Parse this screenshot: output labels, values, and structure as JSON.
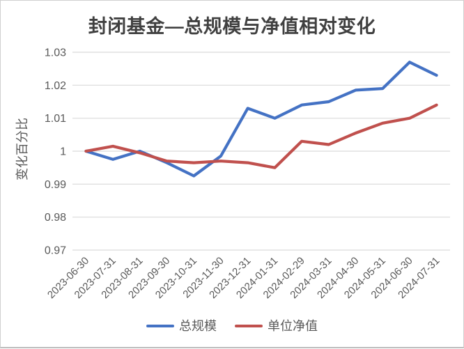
{
  "title": "封闭基金—总规模与净值相对变化",
  "chart_data": {
    "type": "line",
    "title": "封闭基金—总规模与净值相对变化",
    "xlabel": "",
    "ylabel": "变化百分比",
    "categories": [
      "2023-06-30",
      "2023-07-31",
      "2023-08-31",
      "2023-09-30",
      "2023-10-31",
      "2023-11-30",
      "2023-12-31",
      "2024-01-31",
      "2024-02-29",
      "2024-03-31",
      "2024-04-30",
      "2024-05-31",
      "2024-06-30",
      "2024-07-31"
    ],
    "series": [
      {
        "name": "总规模",
        "color": "#4472C4",
        "values": [
          1.0,
          0.9975,
          1.0,
          0.9965,
          0.9925,
          0.9985,
          1.013,
          1.01,
          1.014,
          1.015,
          1.0185,
          1.019,
          1.027,
          1.023
        ]
      },
      {
        "name": "单位净值",
        "color": "#C0504D",
        "values": [
          1.0,
          1.0015,
          0.9995,
          0.997,
          0.9965,
          0.997,
          0.9965,
          0.995,
          1.003,
          1.002,
          1.0055,
          1.0085,
          1.01,
          1.014
        ]
      }
    ],
    "ylim": [
      0.97,
      1.03
    ],
    "ytick_step": 0.01,
    "ytick_labels": [
      "0.97",
      "0.98",
      "0.99",
      "1",
      "1.01",
      "1.02",
      "1.03"
    ],
    "grid": true,
    "gridline_color": "#D9D9D9",
    "axis_text_color": "#595959",
    "legend_position": "bottom"
  }
}
